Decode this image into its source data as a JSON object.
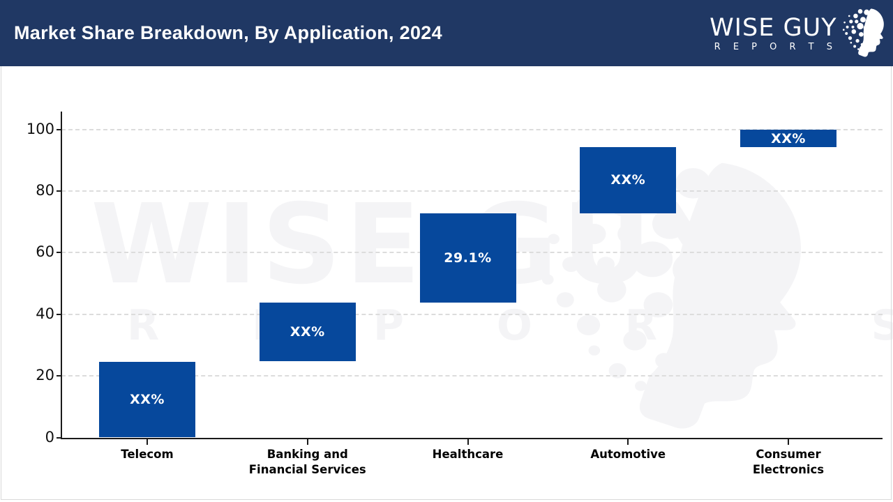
{
  "header": {
    "title": "Market Share Breakdown, By Application, 2024",
    "bg_color": "#203864",
    "logo": {
      "line1": "WISE GUY",
      "line2": "R E P O R T S"
    }
  },
  "watermark": {
    "line1": "WISE GUY",
    "line2": "R E P O R T S"
  },
  "chart_data": {
    "type": "bar",
    "variant": "floating-segment-waterfall",
    "title": "Market Share Breakdown, By Application, 2024",
    "categories": [
      [
        "Telecom"
      ],
      [
        "Banking and",
        "Financial Services"
      ],
      [
        "Healthcare"
      ],
      [
        "Automotive"
      ],
      [
        "Consumer",
        "Electronics"
      ]
    ],
    "segments": [
      {
        "category": "Telecom",
        "start": 0,
        "end": 24.6,
        "label": "XX%"
      },
      {
        "category": "Banking and Financial Services",
        "start": 24.7,
        "end": 43.7,
        "label": "XX%"
      },
      {
        "category": "Healthcare",
        "start": 43.7,
        "end": 72.8,
        "label": "29.1%"
      },
      {
        "category": "Automotive",
        "start": 72.8,
        "end": 94.3,
        "label": "XX%"
      },
      {
        "category": "Consumer Electronics",
        "start": 94.3,
        "end": 99.8,
        "label": "XX%"
      }
    ],
    "ylim": [
      0,
      100
    ],
    "yticks": [
      0,
      20,
      40,
      60,
      80,
      100
    ],
    "xlabel": "",
    "ylabel": "",
    "grid": {
      "horizontal": true,
      "style": "dashed",
      "color": "#dcdcdc"
    },
    "legend": "none",
    "bar_color": "#06489c",
    "bar_label_color": "#ffffff",
    "axis_color": "#1a1a1a"
  }
}
